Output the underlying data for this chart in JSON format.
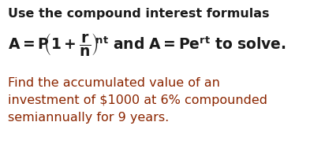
{
  "background_color": "#ffffff",
  "title_text": "Use the compound interest formulas",
  "body_text": "Find the accumulated value of an\ninvestment of $1000 at 6% compounded\nsemiannually for 9 years.",
  "title_color": "#1a1a1a",
  "formula_color": "#1a1a1a",
  "body_color": "#8b2500",
  "title_fontsize": 11.5,
  "formula_fontsize": 13.5,
  "body_fontsize": 11.5,
  "fig_width": 4.12,
  "fig_height": 2.03,
  "dpi": 100
}
